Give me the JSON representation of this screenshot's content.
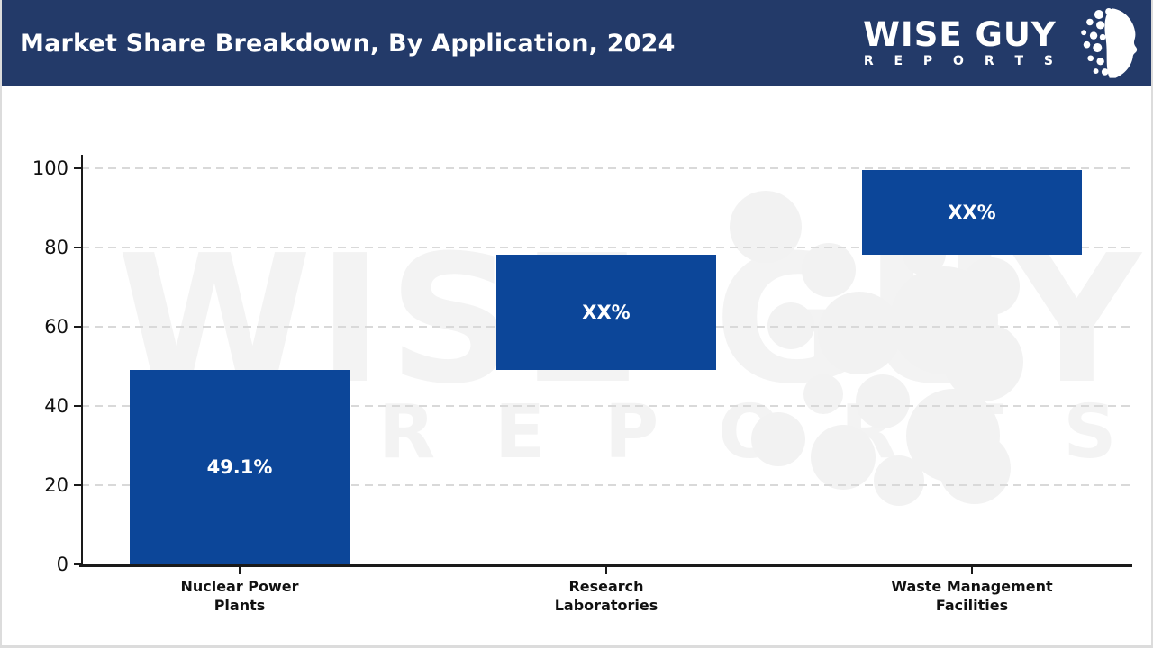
{
  "header": {
    "title": "Market Share Breakdown, By Application, 2024",
    "bg_color": "#233a69",
    "logo": {
      "line1": "WISE GUY",
      "line2": "R E P O R T S",
      "icon": "dotted-face-profile"
    }
  },
  "watermark": {
    "line1": "WISE GUY",
    "line2": "REPORTS",
    "color": "#f3f3f3"
  },
  "chart_data": {
    "type": "bar",
    "subtype": "floating-segment-bars",
    "title": "Market Share Breakdown, By Application, 2024",
    "categories": [
      "Nuclear Power Plants",
      "Research Laboratories",
      "Waste Management Facilities"
    ],
    "category_lines": [
      [
        "Nuclear Power",
        "Plants"
      ],
      [
        "Research",
        "Laboratories"
      ],
      [
        "Waste Management",
        "Facilities"
      ]
    ],
    "segments": [
      {
        "category": "Nuclear Power Plants",
        "start": 0,
        "end": 49.1,
        "label": "49.1%"
      },
      {
        "category": "Research Laboratories",
        "start": 49.1,
        "end": 78.2,
        "label": "XX%"
      },
      {
        "category": "Waste Management Facilities",
        "start": 78.2,
        "end": 99.5,
        "label": "XX%"
      }
    ],
    "yticks": [
      0,
      20,
      40,
      60,
      80,
      100
    ],
    "ylim": [
      0,
      103.5
    ],
    "xlabel": "",
    "ylabel": "",
    "grid": true,
    "legend": "none",
    "bar_color": "#0c4699",
    "bar_label_color": "#ffffff",
    "grid_color": "#d9d9d9",
    "axis_color": "#1a1a1a"
  }
}
